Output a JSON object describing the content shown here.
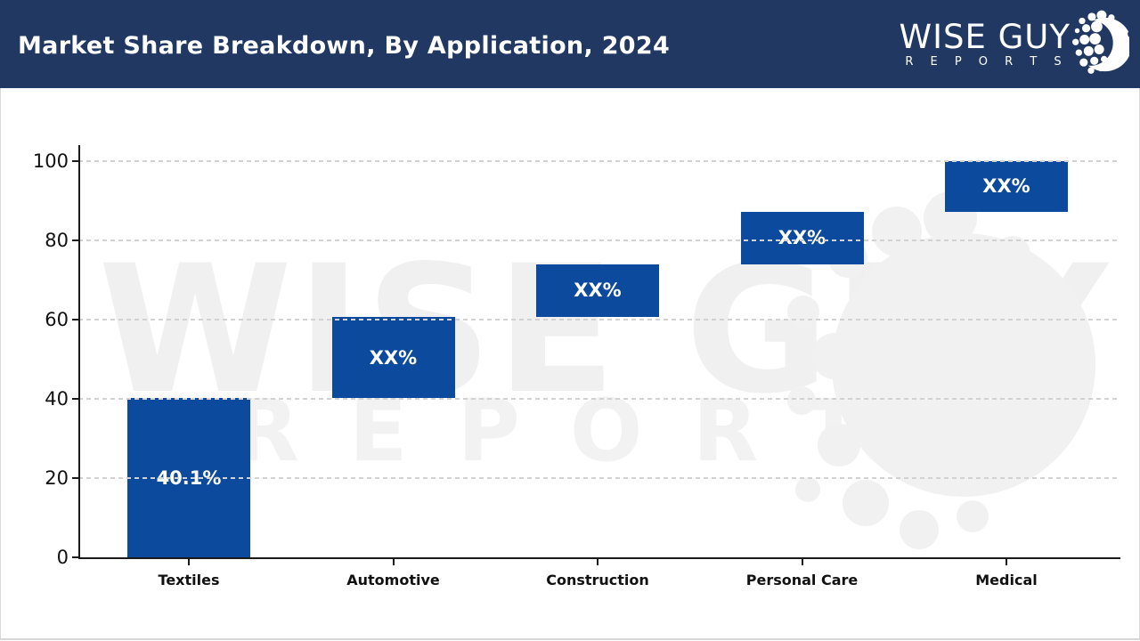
{
  "header": {
    "title": "Market Share Breakdown, By Application, 2024",
    "background_color": "#203862",
    "logo": {
      "wordmark": "WISE GUY",
      "sub": "R E P O R T S"
    }
  },
  "watermark": {
    "wordmark": "WISE GUY",
    "sub": "REPORTS"
  },
  "chart_data": {
    "type": "bar",
    "variant": "waterfall",
    "title": "Market Share Breakdown, By Application, 2024",
    "categories": [
      "Textiles",
      "Automotive",
      "Construction",
      "Personal Care",
      "Medical"
    ],
    "segments": [
      {
        "category": "Textiles",
        "start": 0,
        "end": 40.1,
        "label": "40.1%"
      },
      {
        "category": "Automotive",
        "start": 40.1,
        "end": 60.6,
        "label": "XX%"
      },
      {
        "category": "Construction",
        "start": 60.6,
        "end": 74.0,
        "label": "XX%"
      },
      {
        "category": "Personal Care",
        "start": 74.0,
        "end": 87.2,
        "label": "XX%"
      },
      {
        "category": "Medical",
        "start": 87.2,
        "end": 100.0,
        "label": "XX%"
      }
    ],
    "yticks": [
      0,
      20,
      40,
      60,
      80,
      100
    ],
    "ylim": [
      0,
      104
    ],
    "xlabel": "",
    "ylabel": "",
    "bar_color": "#0c4a9d",
    "bar_label_color": "#ffffff",
    "axis_color": "#1a1a1a",
    "grid": "horizontal-dashed",
    "grid_color": "#d2d2d2",
    "legend": "none"
  }
}
